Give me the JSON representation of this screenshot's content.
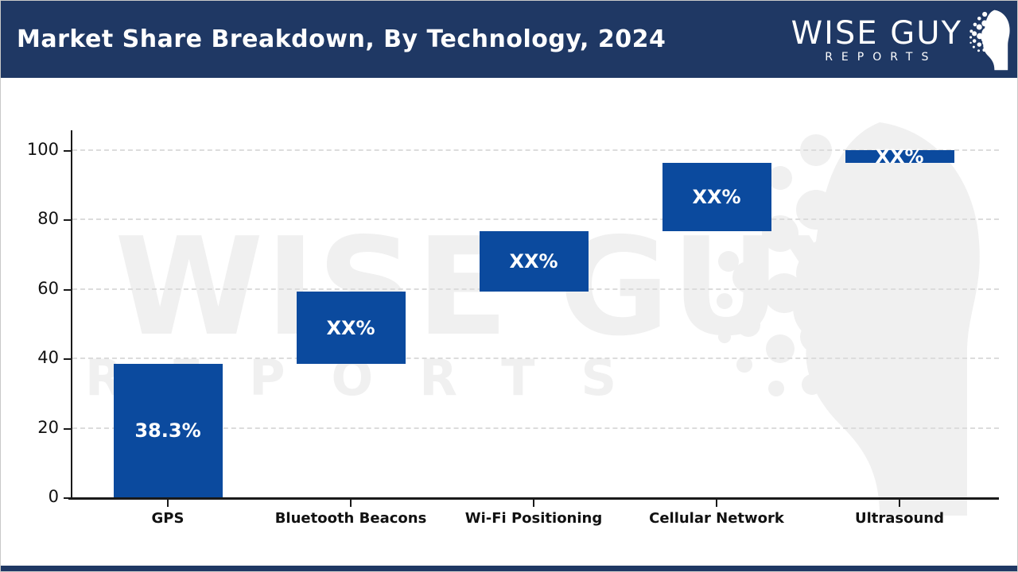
{
  "header": {
    "title": "Market Share Breakdown, By Technology, 2024",
    "logo": {
      "line1": "WISE GUY",
      "line2": "REPORTS"
    },
    "bg_color": "#1f3864"
  },
  "watermark": {
    "line1": "WISE GUY",
    "line2": "REPORTS"
  },
  "footer": {
    "bg_color": "#1f3864"
  },
  "chart_data": {
    "type": "bar",
    "subtype": "waterfall",
    "title": "Market Share Breakdown, By Technology, 2024",
    "categories": [
      "GPS",
      "Bluetooth Beacons",
      "Wi-Fi Positioning",
      "Cellular Network",
      "Ultrasound"
    ],
    "segments": [
      {
        "category": "GPS",
        "start": 0,
        "end": 38.3,
        "label": "38.3%"
      },
      {
        "category": "Bluetooth Beacons",
        "start": 38.3,
        "end": 59.2,
        "label": "XX%"
      },
      {
        "category": "Wi-Fi Positioning",
        "start": 59.2,
        "end": 76.6,
        "label": "XX%"
      },
      {
        "category": "Cellular Network",
        "start": 76.6,
        "end": 96.2,
        "label": "XX%"
      },
      {
        "category": "Ultrasound",
        "start": 96.2,
        "end": 100,
        "label": "XX%"
      }
    ],
    "xlabel": "",
    "ylabel": "",
    "ylim": [
      0,
      100
    ],
    "yticks": [
      0,
      20,
      40,
      60,
      80,
      100
    ],
    "grid": "horizontal-dashed",
    "legend": "none",
    "bar_color": "#0b4a9e",
    "bar_label_color": "#ffffff"
  }
}
